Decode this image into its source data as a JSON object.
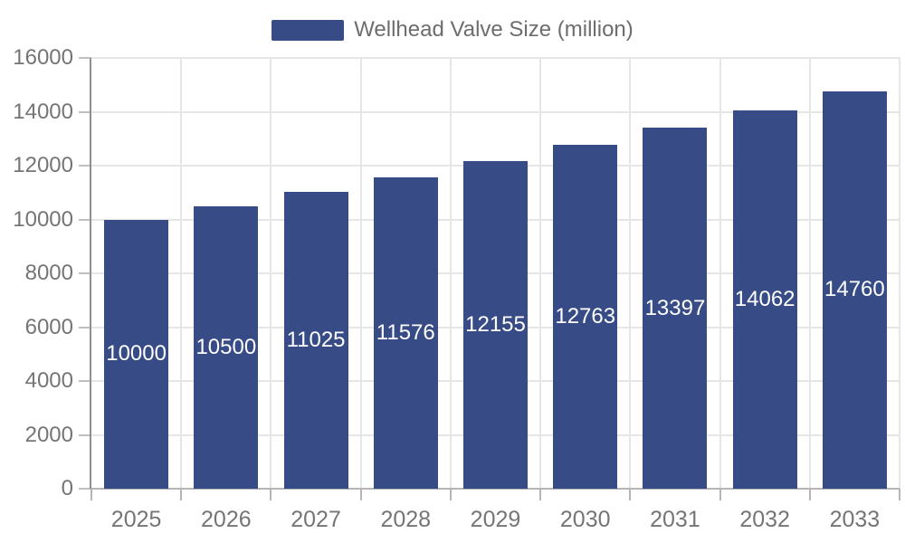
{
  "legend": {
    "label": "Wellhead Valve Size (million)"
  },
  "chart_data": {
    "type": "bar",
    "title": "Wellhead Valve Size (million)",
    "categories": [
      "2025",
      "2026",
      "2027",
      "2028",
      "2029",
      "2030",
      "2031",
      "2032",
      "2033"
    ],
    "series": [
      {
        "name": "Wellhead Valve Size (million)",
        "values": [
          10000,
          10500,
          11025,
          11576,
          12155,
          12763,
          13397,
          14062,
          14760
        ]
      }
    ],
    "bar_value_labels": [
      "10000",
      "10500",
      "11025",
      "11576",
      "12155",
      "12763",
      "13397",
      "14062",
      "14760"
    ],
    "xlabel": "",
    "ylabel": "",
    "ylim": [
      0,
      16000
    ],
    "yticks": [
      0,
      2000,
      4000,
      6000,
      8000,
      10000,
      12000,
      14000,
      16000
    ],
    "ytick_labels": [
      "0",
      "2000",
      "4000",
      "6000",
      "8000",
      "10000",
      "12000",
      "14000",
      "16000"
    ],
    "grid": true,
    "legend_position": "top-center",
    "colors": {
      "bar": "#374b86",
      "bar_label": "#ffffff",
      "axis_text": "#757575",
      "legend_text": "#6d6d6d",
      "gridline": "#e6e6e6",
      "axis_line": "#8f8f8f",
      "baseline": "#b5b5b5",
      "tick": "#c0c0c0"
    }
  }
}
